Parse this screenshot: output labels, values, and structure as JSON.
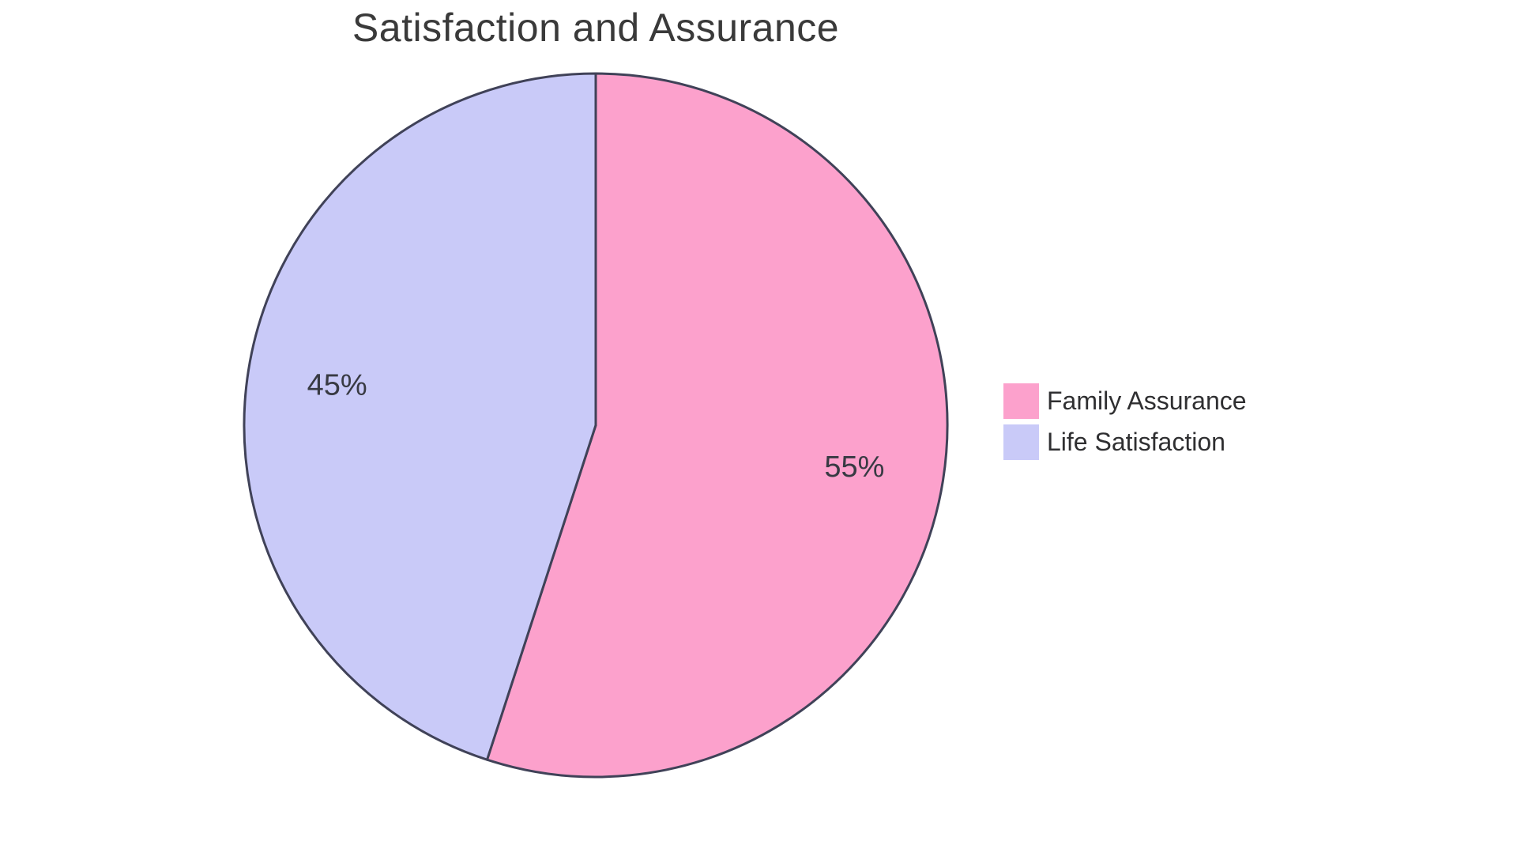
{
  "page": {
    "background_color": "#FFFFFF"
  },
  "chart_data": {
    "type": "pie",
    "title": "Satisfaction and Assurance",
    "labels": [
      "Family Assurance",
      "Life Satisfaction"
    ],
    "values": [
      55,
      45
    ],
    "slice_labels": [
      "55%",
      "45%"
    ],
    "colors": [
      "#FCA1CC",
      "#C9CAF8"
    ],
    "outline_color": "#404258",
    "outline_width": 3,
    "slice_label_color": "#383A43",
    "title_color": "#3A3A3A",
    "legend_text_color": "#2F2F31",
    "start_angle_clockwise_from_top_deg": 0,
    "direction": "clockwise",
    "legend_position": "right",
    "grid": false
  }
}
